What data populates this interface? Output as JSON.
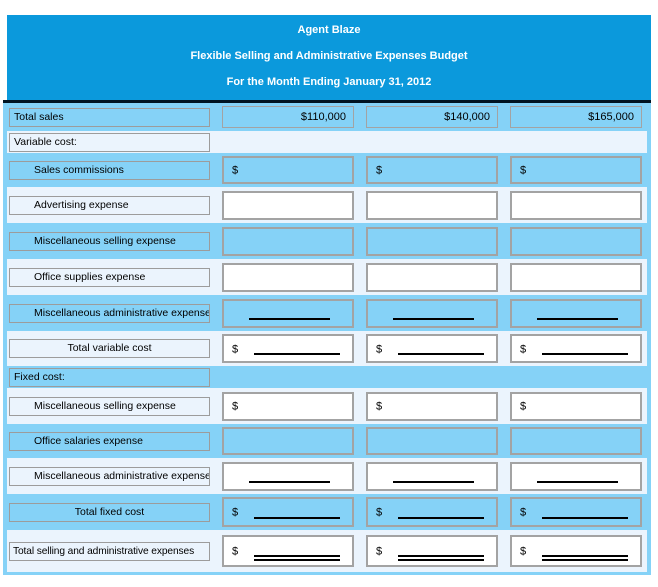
{
  "colors": {
    "header_blue": "#0b99dc",
    "row_blue": "#85d2f7",
    "row_light": "#ebf4fd",
    "separator_dark": "#001422",
    "box_border_gray": "#9c9c9c",
    "cell_border_gray": "#a3a3a3",
    "rule_black": "#000000"
  },
  "header": {
    "company": "Agent Blaze",
    "report_title": "Flexible Selling and Administrative Expenses Budget",
    "period": "For the Month Ending January 31, 2012"
  },
  "table": {
    "rows": [
      {
        "name": "total-sales",
        "label": "Total sales",
        "indent": false,
        "align": "left",
        "tone": "blue",
        "kind": "value",
        "cells": {
          "type": "value",
          "values": [
            "$110,000",
            "$140,000",
            "$165,000"
          ]
        }
      },
      {
        "name": "variable-cost-header",
        "label": "Variable cost:",
        "indent": false,
        "align": "left",
        "tone": "light",
        "kind": "section",
        "cells": {
          "type": "none"
        }
      },
      {
        "name": "sales-commissions",
        "label": "Sales commissions",
        "indent": true,
        "align": "left",
        "tone": "blue",
        "kind": "item_sm",
        "cells": {
          "type": "input",
          "dollar": "$",
          "line": "none"
        }
      },
      {
        "name": "advertising-expense",
        "label": "Advertising expense",
        "indent": true,
        "align": "left",
        "tone": "light",
        "kind": "item",
        "cells": {
          "type": "input",
          "dollar": "",
          "line": "none"
        }
      },
      {
        "name": "miscellaneous-selling-expense-variable",
        "label": "Miscellaneous selling expense",
        "indent": true,
        "align": "left",
        "tone": "blue",
        "kind": "item",
        "cells": {
          "type": "input",
          "dollar": "",
          "line": "none"
        }
      },
      {
        "name": "office-supplies-expense",
        "label": "Office supplies expense",
        "indent": true,
        "align": "left",
        "tone": "light",
        "kind": "item",
        "cells": {
          "type": "input",
          "dollar": "",
          "line": "none"
        }
      },
      {
        "name": "miscellaneous-administrative-expense-variable",
        "label": "Miscellaneous administrative expense",
        "indent": true,
        "align": "left",
        "tone": "blue",
        "kind": "item",
        "cells": {
          "type": "input",
          "dollar": "",
          "line": "single"
        }
      },
      {
        "name": "total-variable-cost",
        "label": "Total variable cost",
        "indent": false,
        "align": "center",
        "tone": "light",
        "kind": "total_l",
        "cells": {
          "type": "input",
          "dollar": "$",
          "line": "single"
        }
      },
      {
        "name": "fixed-cost-header",
        "label": "Fixed cost:",
        "indent": false,
        "align": "left",
        "tone": "blue",
        "kind": "section",
        "cells": {
          "type": "none"
        }
      },
      {
        "name": "miscellaneous-selling-expense-fixed",
        "label": "Miscellaneous selling expense",
        "indent": true,
        "align": "left",
        "tone": "light",
        "kind": "item",
        "cells": {
          "type": "input",
          "dollar": "$",
          "line": "none"
        }
      },
      {
        "name": "office-salaries-expense",
        "label": "Office salaries expense",
        "indent": true,
        "align": "left",
        "tone": "blue",
        "kind": "item_sm",
        "cells": {
          "type": "input",
          "dollar": "",
          "line": "none"
        }
      },
      {
        "name": "miscellaneous-administrative-expense-fixed",
        "label": "Miscellaneous administrative expense",
        "indent": true,
        "align": "left",
        "tone": "light",
        "kind": "item",
        "cells": {
          "type": "input",
          "dollar": "",
          "line": "single"
        }
      },
      {
        "name": "total-fixed-cost",
        "label": "Total fixed cost",
        "indent": false,
        "align": "center",
        "tone": "blue",
        "kind": "total",
        "cells": {
          "type": "input",
          "dollar": "$",
          "line": "single"
        }
      },
      {
        "name": "total-selling-and-administrative-expenses",
        "label": "Total selling and administrative expenses",
        "indent": false,
        "align": "left",
        "tone": "light",
        "kind": "grand",
        "cells": {
          "type": "input",
          "dollar": "$",
          "line": "double"
        }
      }
    ]
  }
}
